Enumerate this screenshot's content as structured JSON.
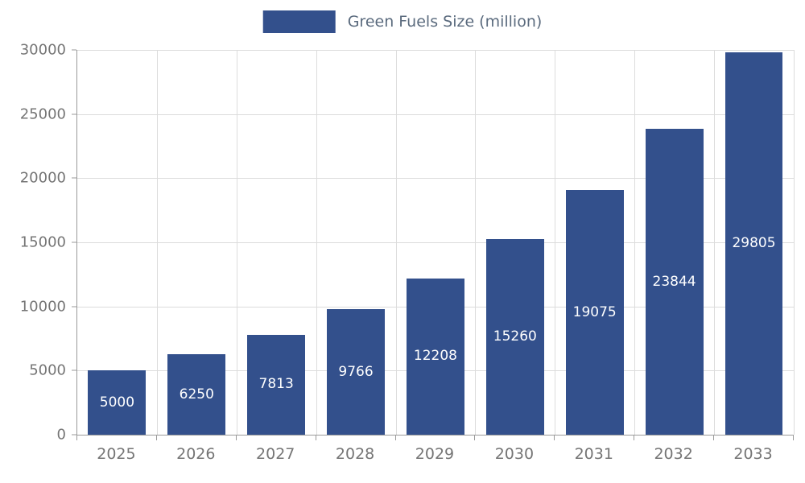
{
  "chart_data": {
    "type": "bar",
    "title": "Green Fuels Size (million)",
    "categories": [
      "2025",
      "2026",
      "2027",
      "2028",
      "2029",
      "2030",
      "2031",
      "2032",
      "2033"
    ],
    "values": [
      5000,
      6250,
      7813,
      9766,
      12208,
      15260,
      19075,
      23844,
      29805
    ],
    "series": [
      {
        "name": "Green Fuels Size (million)",
        "values": [
          5000,
          6250,
          7813,
          9766,
          12208,
          15260,
          19075,
          23844,
          29805
        ]
      }
    ],
    "xlabel": "",
    "ylabel": "",
    "ylim": [
      0,
      30000
    ],
    "yticks": [
      0,
      5000,
      10000,
      15000,
      20000,
      25000,
      30000
    ],
    "grid": true,
    "legend_position": "top",
    "colors": {
      "bar": "#33508C",
      "value_label": "#ffffff",
      "axis": "#9a9a9a",
      "grid": "#dcdcdc",
      "tick_text": "#757575",
      "legend_text": "#5B6B7E"
    }
  }
}
